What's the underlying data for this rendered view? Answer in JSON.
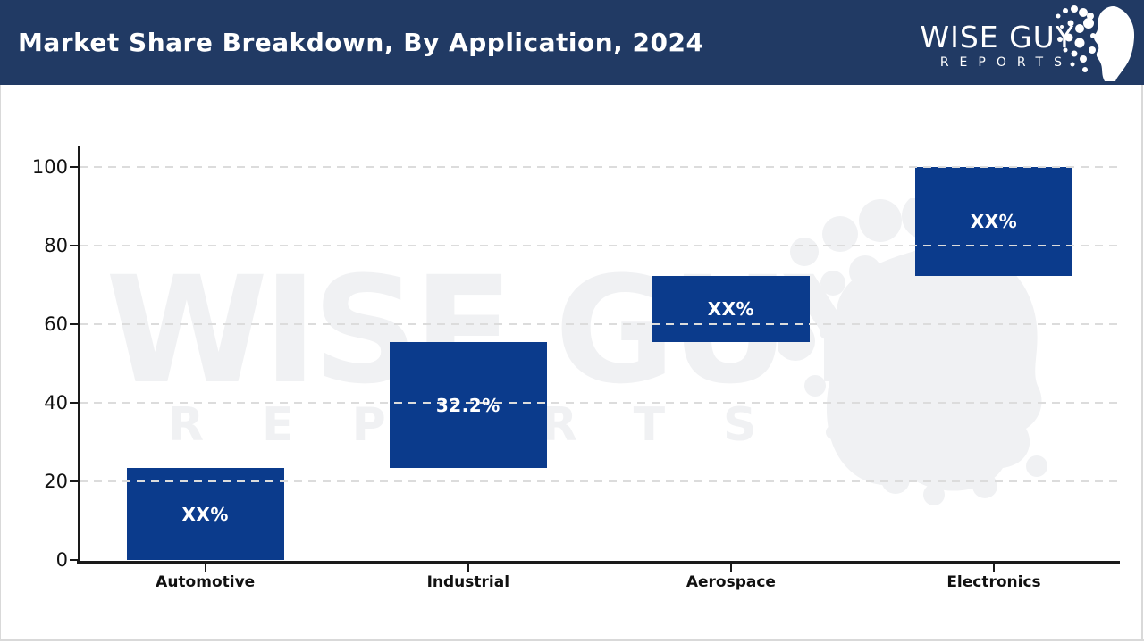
{
  "header": {
    "title": "Market Share Breakdown, By Application, 2024",
    "logo": {
      "primary": "WISE GUY",
      "secondary": "REPORTS"
    }
  },
  "watermark": {
    "primary": "WISE GUY",
    "secondary": "REPORTS"
  },
  "chart_data": {
    "type": "bar",
    "subtype": "floating-waterfall",
    "title": "Market Share Breakdown, By Application, 2024",
    "categories": [
      "Automotive",
      "Industrial",
      "Aerospace",
      "Electronics"
    ],
    "segments": [
      {
        "category": "Automotive",
        "start": 0,
        "end": 23.3,
        "label": "XX%"
      },
      {
        "category": "Industrial",
        "start": 23.3,
        "end": 55.5,
        "label": "32.2%"
      },
      {
        "category": "Aerospace",
        "start": 55.5,
        "end": 72.2,
        "label": "XX%"
      },
      {
        "category": "Electronics",
        "start": 72.2,
        "end": 100,
        "label": "XX%"
      }
    ],
    "xlabel": "",
    "ylabel": "",
    "ylim": [
      0,
      100
    ],
    "yticks": [
      0,
      20,
      40,
      60,
      80,
      100
    ],
    "grid": "horizontal-dashed",
    "legend": "none",
    "bar_color": "#0B3B8C",
    "bar_label_color": "#ffffff"
  },
  "colors": {
    "header_bg": "#213A64",
    "bar_fill": "#0B3B8C",
    "grid_line": "#DCDCDC",
    "axis_line": "#1A1A1A",
    "watermark": "#F0F1F3",
    "page_bg": "#FFFFFF",
    "edge_border": "#D9D9D9"
  }
}
